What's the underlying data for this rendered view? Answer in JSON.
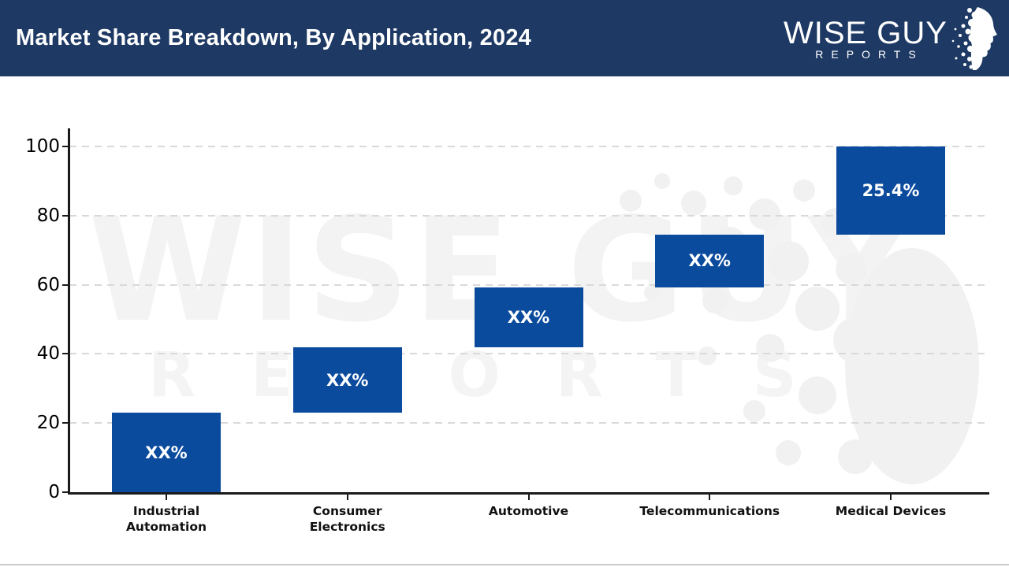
{
  "header": {
    "title": "Market Share Breakdown, By Application, 2024",
    "bg_color": "#1e3a64",
    "logo": {
      "wordmark": "WISE GUY",
      "subtext": "REPORTS"
    }
  },
  "watermark": {
    "line1": "WISE GUY",
    "line2": "REPORTS"
  },
  "colors": {
    "header_bg": "#1e3a64",
    "bar_blue": "#0b4b9e",
    "axis": "#1a1a1a",
    "gridline": "#d9d9d9",
    "watermark_gray": "#f3f3f3"
  },
  "chart_data": {
    "type": "bar",
    "variant": "waterfall",
    "title": "Market Share Breakdown, By Application, 2024",
    "categories": [
      "Industrial Automation",
      "Consumer Electronics",
      "Automotive",
      "Telecommunications",
      "Medical Devices"
    ],
    "category_lines": [
      [
        "Industrial",
        "Automation"
      ],
      [
        "Consumer",
        "Electronics"
      ],
      [
        "Automotive"
      ],
      [
        "Telecommunications"
      ],
      [
        "Medical Devices"
      ]
    ],
    "values": [
      22.9,
      19.0,
      17.3,
      15.4,
      25.4
    ],
    "cumulative_ends": [
      22.9,
      41.9,
      59.2,
      74.6,
      100
    ],
    "bar_labels": [
      "XX%",
      "XX%",
      "XX%",
      "XX%",
      "25.4%"
    ],
    "bar_color": "#0b4b9e",
    "label_color": "#ffffff",
    "xlabel": "",
    "ylabel": "",
    "ylim": [
      0,
      100
    ],
    "yticks": [
      0,
      20,
      40,
      60,
      80,
      100
    ],
    "grid": "horizontal-dashed",
    "legend": "none"
  }
}
